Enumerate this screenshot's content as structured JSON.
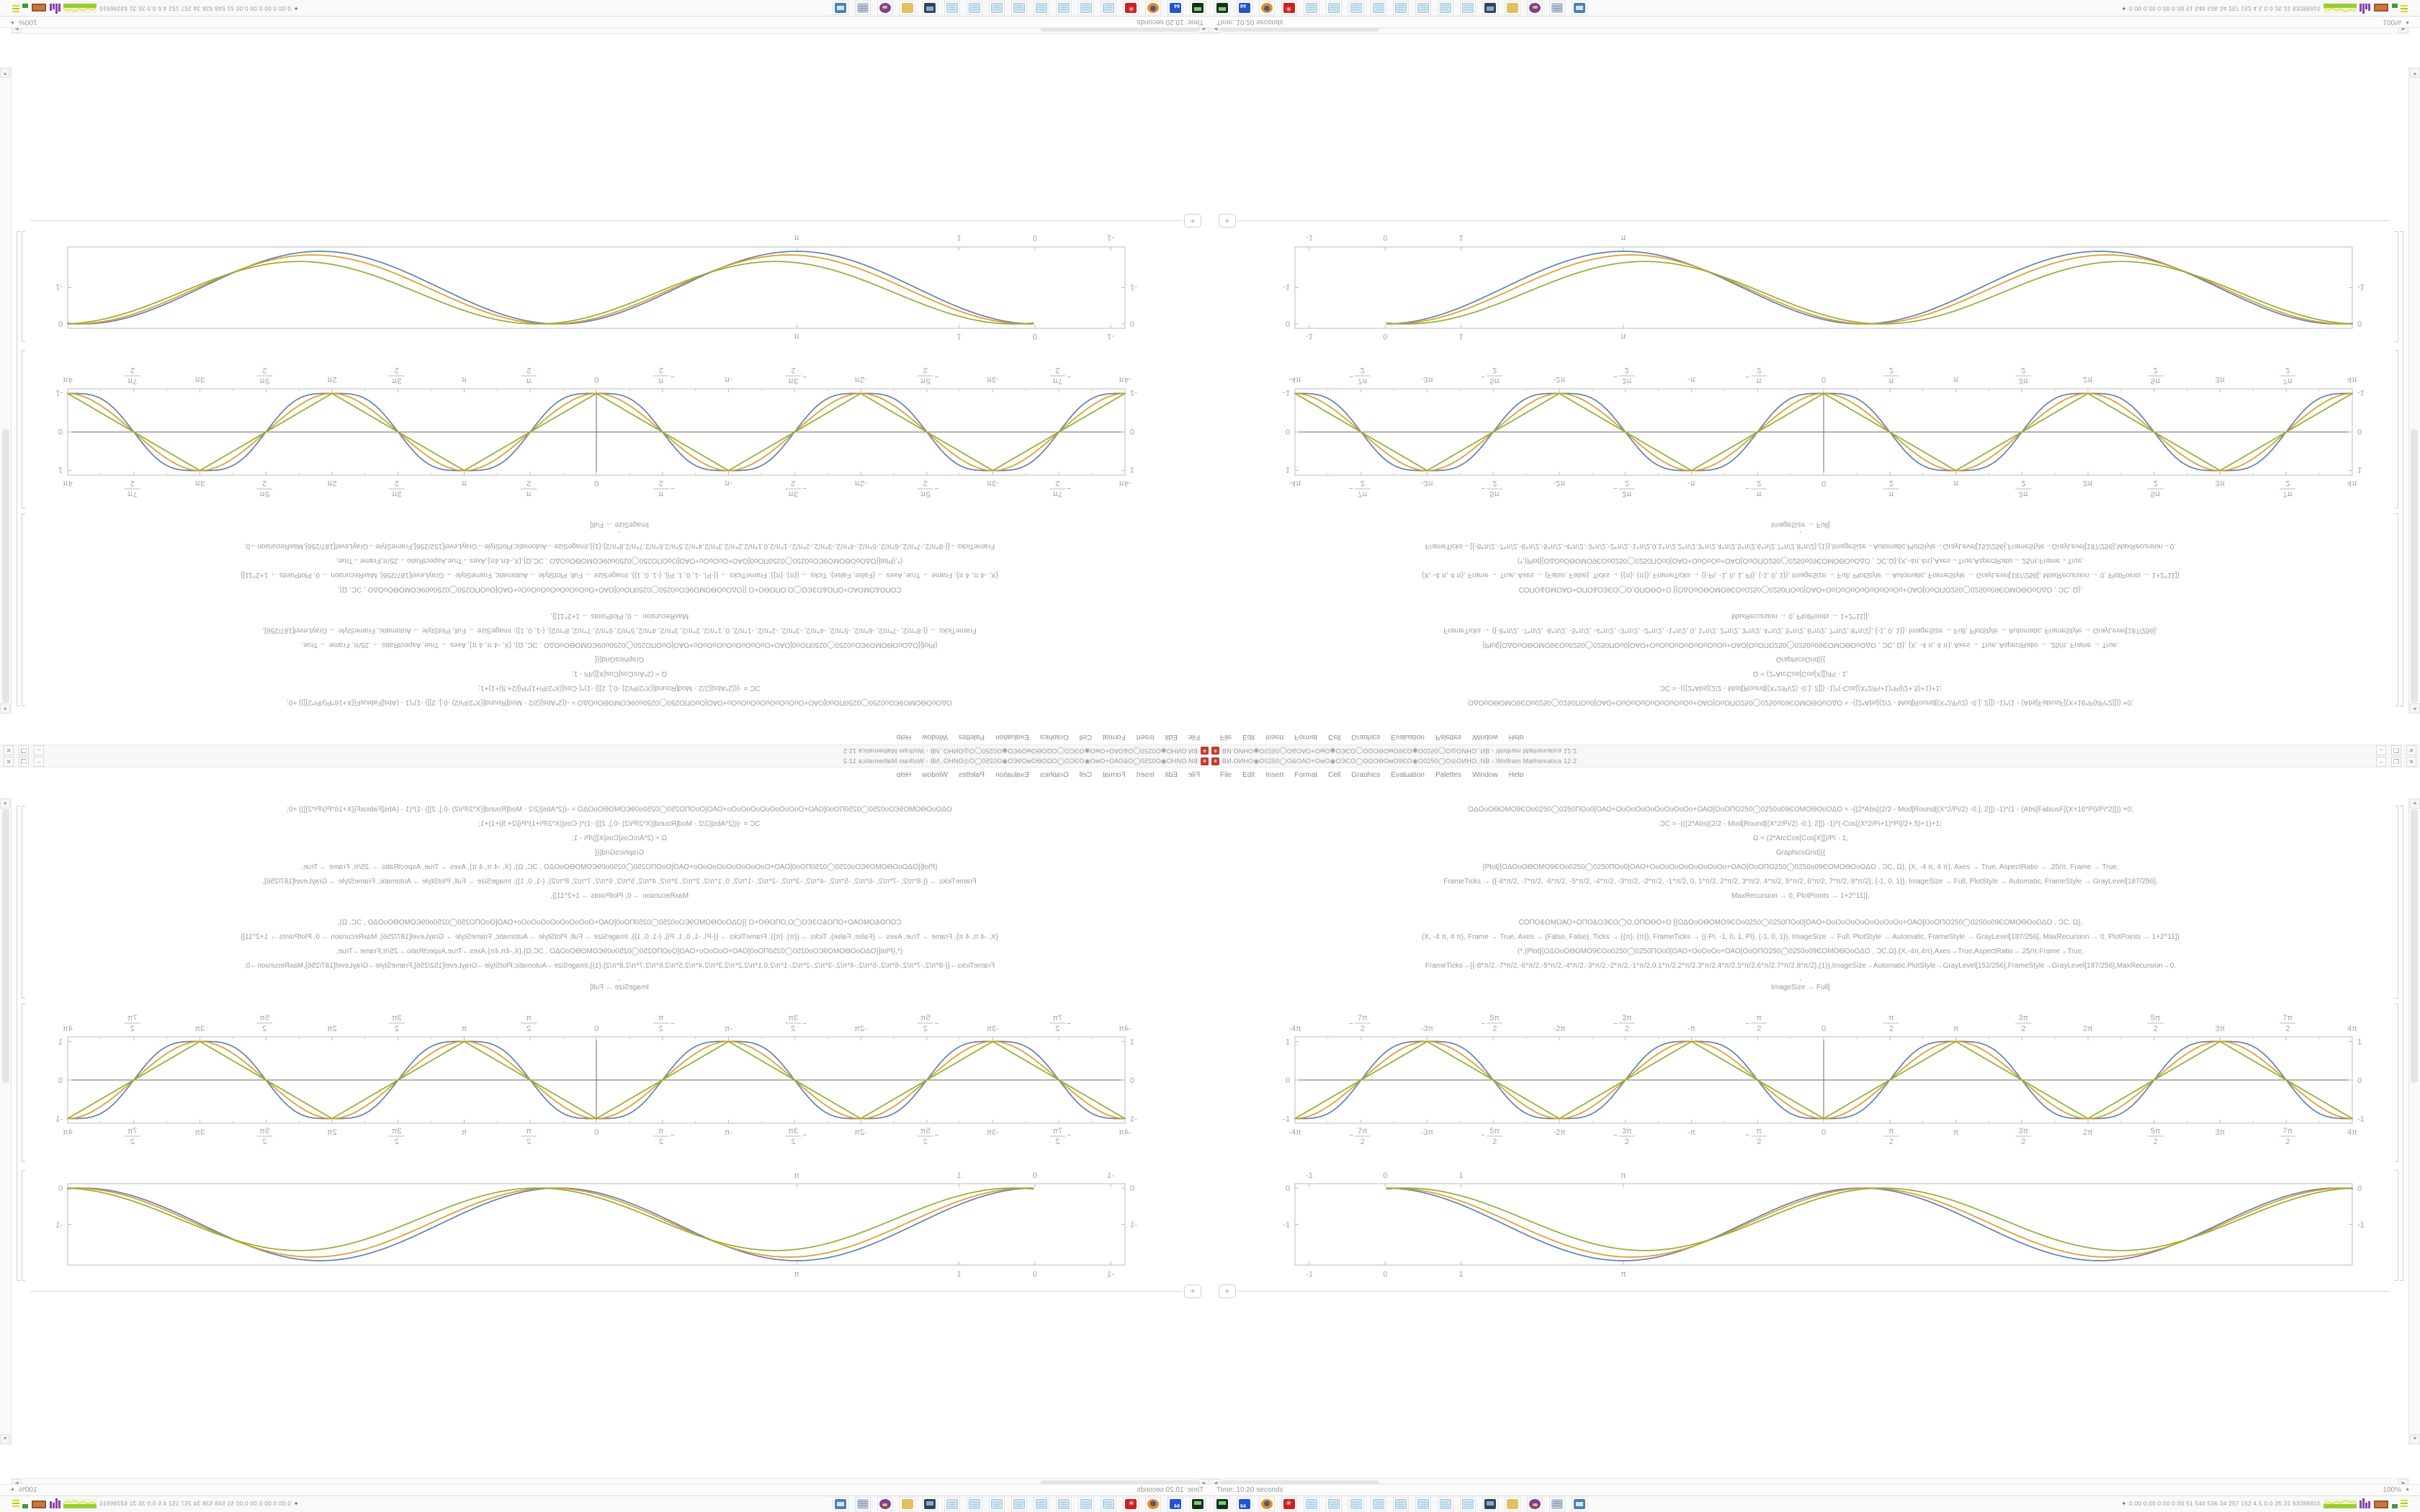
{
  "window": {
    "title": "ВИ.ОИНО◉О0250◯О&ОАО+ОмО◉ОЭСО◯ОΩОѲОмО9ЄО◉О0250◯О◎ОИНО..NB - Wolfram Mathematica 12.2",
    "buttons": {
      "minimize": "–",
      "maximize": "❐",
      "close": "✕"
    }
  },
  "menu": {
    "items": [
      "File",
      "Edit",
      "Insert",
      "Format",
      "Cell",
      "Graphics",
      "Evaluation",
      "Palettes",
      "Window",
      "Help"
    ]
  },
  "code": {
    "lines": [
      "ОΔОоОѲОМО9ЄОо0250◯0250ПОо0[ОАО+ОоОоОоОоОоОоОоОо+ОАО[ОоОПО250◯0250о09ЄОМОѲОоОΔО  = -((2*Abs[(2/2 - Mod[Round[(X*2/Pi/2) -0.], 2]]) -1)*(1 - (Abs[FabiusF[(X+16*Pi)/Pi*2]])) +0;",
      "ƆC = -(((2*Abs[(2/2 - Mod[Round[(X*2/Pi/2) -0.], 2]]) -1)*(-Cos[(X*2/Pi+1)*Pi]/2+.5)+1)+1;",
      "Ω = (2*ArcCos[Cos[X]])/Pi - 1;",
      "GraphicsGrid[{{",
      "{Plot[{ОΔОоОѲОМО9ЄОо0250◯0250ПОо0[ОАО+ОоОоОоОоОоОоОоОо+ОАО[ОоОПО250◯0250о09ЄОМОѲОоОΔО , ƆC, Ω}, {X, -4 π, 4 π}, Axes → True, AspectRatio → .25/π, Frame → True,",
      "FrameTicks → {{-8*π/2, -7*π/2, -6*π/2, -5*π/2, -4*π/2, -3*π/2, -2*π/2, -1*π/2, 0, 1*π/2, 2*π/2, 3*π/2, 4*π/2, 5*π/2, 6*π/2, 7*π/2, 8*π/2}, {-1, 0, 1}}, ImageSize → Full, PlotStyle → Automatic, FrameStyle → GrayLevel[187/256],",
      "MaxRecursion → 0, PlotPoints → 1+2^11]},",
      "СОПО&ОМОАО+ОПО&ОЗЄО◯О,ОПОѲО+О  [{ОΔОоОѲОМО9ЄОо0250◯0250ПОо0[ОАО+ОоОоОоОоОоОоОоОо+ОАО[ОоОПО250◯0250о09ЄОМОѲОоОΔО , ƆC, Ω},",
      "{X, -4 π, 4 π}, Frame → True, Axes → {False, False}, Ticks → {{π}, {π}}, FrameTicks → {{-Pi, -1, 0, 1, Pi}, {-1, 0, 1}}, ImageSize → Full, PlotStyle → Automatic, FrameStyle → GrayLevel[187/256], MaxRecursion → 0, PlotPoints → 1+2^11]}",
      "(*,{Plot[{ОΔОоОѲОМО9ЄОо0250◯0250ПОо0[ОАО+ОоОоОо+ОАО[ОоОПО250◯0250о09ЄОМОѲОоОΔО , ƆC,Ω},{X,-4π,4π},Axes→True,AspectRatio→.25/π,Frame→True,",
      "FrameTicks→{{-8*π/2,-7*π/2,-6*π/2,-5*π/2,-4*π/2,-3*π/2,-2*π/2,-1*π/2,0,1*π/2,2*π/2,3*π/2,4*π/2,5*π/2,6*π/2,7*π/2,8*π/2},{1}},ImageSize→Automatic,PlotStyle→GrayLevel[152/256],FrameStyle→GrayLevel[187/256],MaxRecursion→0,",
      ",",
      "ImageSize → Full]"
    ]
  },
  "insert_button": "+",
  "scrollbar": {
    "up": "▲",
    "down": "▼",
    "left": "◀",
    "right": "▶"
  },
  "statusbar": {
    "time_label": "Time: 10.20 seconds",
    "zoom_label": "100%",
    "zoom_caret": "▲"
  },
  "taskbar": {
    "icons": [
      {
        "kind": "terminal",
        "name": "terminal-icon"
      },
      {
        "kind": "floppy",
        "name": "floppy-64-icon"
      },
      {
        "kind": "firefox",
        "name": "firefox-icon"
      },
      {
        "kind": "mma",
        "name": "mathematica-red-icon"
      },
      {
        "kind": "notepad",
        "name": "notepad-icon"
      },
      {
        "kind": "notepad",
        "name": "notepad-icon"
      },
      {
        "kind": "notepad",
        "name": "notepad-icon"
      },
      {
        "kind": "notepad",
        "name": "notepad-icon"
      },
      {
        "kind": "notepad",
        "name": "notepad-icon"
      },
      {
        "kind": "notepad",
        "name": "notepad-icon"
      },
      {
        "kind": "notepad",
        "name": "notepad-icon"
      },
      {
        "kind": "notepad",
        "name": "notepad-icon"
      },
      {
        "kind": "monitor",
        "name": "screenshot-monitor-icon"
      },
      {
        "kind": "folder",
        "name": "folder-icon"
      },
      {
        "kind": "purple",
        "name": "purple-app-icon"
      },
      {
        "kind": "scroll",
        "name": "scroll-doc-icon"
      },
      {
        "kind": "bluebox",
        "name": "blue-box-icon"
      }
    ],
    "tray_glyph": "✦",
    "tray_text": "0.00 0.00 0.00 0.00  51  546 536  34  257  152  4.5  0.0  35  31  63286910"
  },
  "colors": {
    "curve_blue": "#5e81b5",
    "curve_orange": "#e19c24",
    "curve_green": "#8fb032",
    "frame_gray": "#bcbcbc",
    "axis_gray": "#6b6b6b",
    "tick_text": "#a2a2aa"
  },
  "chart_data": [
    {
      "id": "plot1",
      "type": "line",
      "title": "",
      "xlabel": "",
      "ylabel": "",
      "x_range": [
        -12.566,
        12.566
      ],
      "x_range_note": "X from -4π to 4π",
      "ylim": [
        -1,
        1
      ],
      "x_tick_labels": [
        "-4π",
        "-7π/2",
        "-3π",
        "-5π/2",
        "-2π",
        "-3π/2",
        "-π",
        "-π/2",
        "0",
        "π/2",
        "π",
        "3π/2",
        "2π",
        "5π/2",
        "3π",
        "7π/2",
        "4π"
      ],
      "y_tick_labels": [
        "1",
        "0",
        "-1"
      ],
      "frame": true,
      "axes": true,
      "grid": false,
      "legend": "none",
      "layout_note": "FrameTicks labeled on top+bottom (π/2 steps) and left+right (-1,0,1); dark axes at x=0 and y=0; AspectRatio .25/π; ImageSize Full",
      "series": [
        {
          "name": "garbled-FabiusF-wave",
          "color": "#5e81b5",
          "formula": "flat-topped smoothed triangle wave, period 2π, min -1 at even multiples of π, max +1 at odd multiples",
          "gen": "smooth2"
        },
        {
          "name": "ƆC",
          "color": "#e19c24",
          "formula": "≈ -Cos[X]; rounded wave, period 2π, min -1 at x=0",
          "gen": "smooth1"
        },
        {
          "name": "Ω",
          "color": "#8fb032",
          "formula": "(2 ArcCos[Cos[X]])/π - 1 : triangle wave, period 2π",
          "gen": "tri"
        }
      ]
    },
    {
      "id": "plot2",
      "type": "line",
      "title": "",
      "xlabel": "",
      "ylabel": "",
      "x_range": [
        -1,
        12.566
      ],
      "x_range_note": "frame from about -1 to 4π; curves drawn only for X ≥ 0",
      "ylim": [
        -2,
        0
      ],
      "x_tick_labels": [
        "-1",
        "0",
        "1",
        "π"
      ],
      "x_tick_values": [
        -1,
        0,
        1,
        3.14159
      ],
      "y_tick_labels": [
        "0",
        "-1"
      ],
      "y_tick_values": [
        0,
        -1
      ],
      "frame": true,
      "axes": false,
      "grid": false,
      "legend": "none",
      "layout_note": "FrameTicks {-Pi,-1,0,1,Pi} labeled top+bottom; y ticks 0,-1 on left+right; no axes lines",
      "series": [
        {
          "name": "garbled-FabiusF-wave",
          "color": "#5e81b5",
          "formula": "Cos[X] - 1 : starts at (0,0), min -2 at x=π and 3π, zero at 2π and 4π",
          "gen": "cos1"
        },
        {
          "name": "ƆC",
          "color": "#e19c24",
          "formula": "≈ 0.95 (Cos[X-0.1] - 1)",
          "gen": "cos2"
        },
        {
          "name": "Ω",
          "color": "#8fb032",
          "formula": "≈ 0.86 (Cos[X-0.28] - 1), shallower minima ≈ -1.75",
          "gen": "cos3"
        }
      ]
    }
  ]
}
